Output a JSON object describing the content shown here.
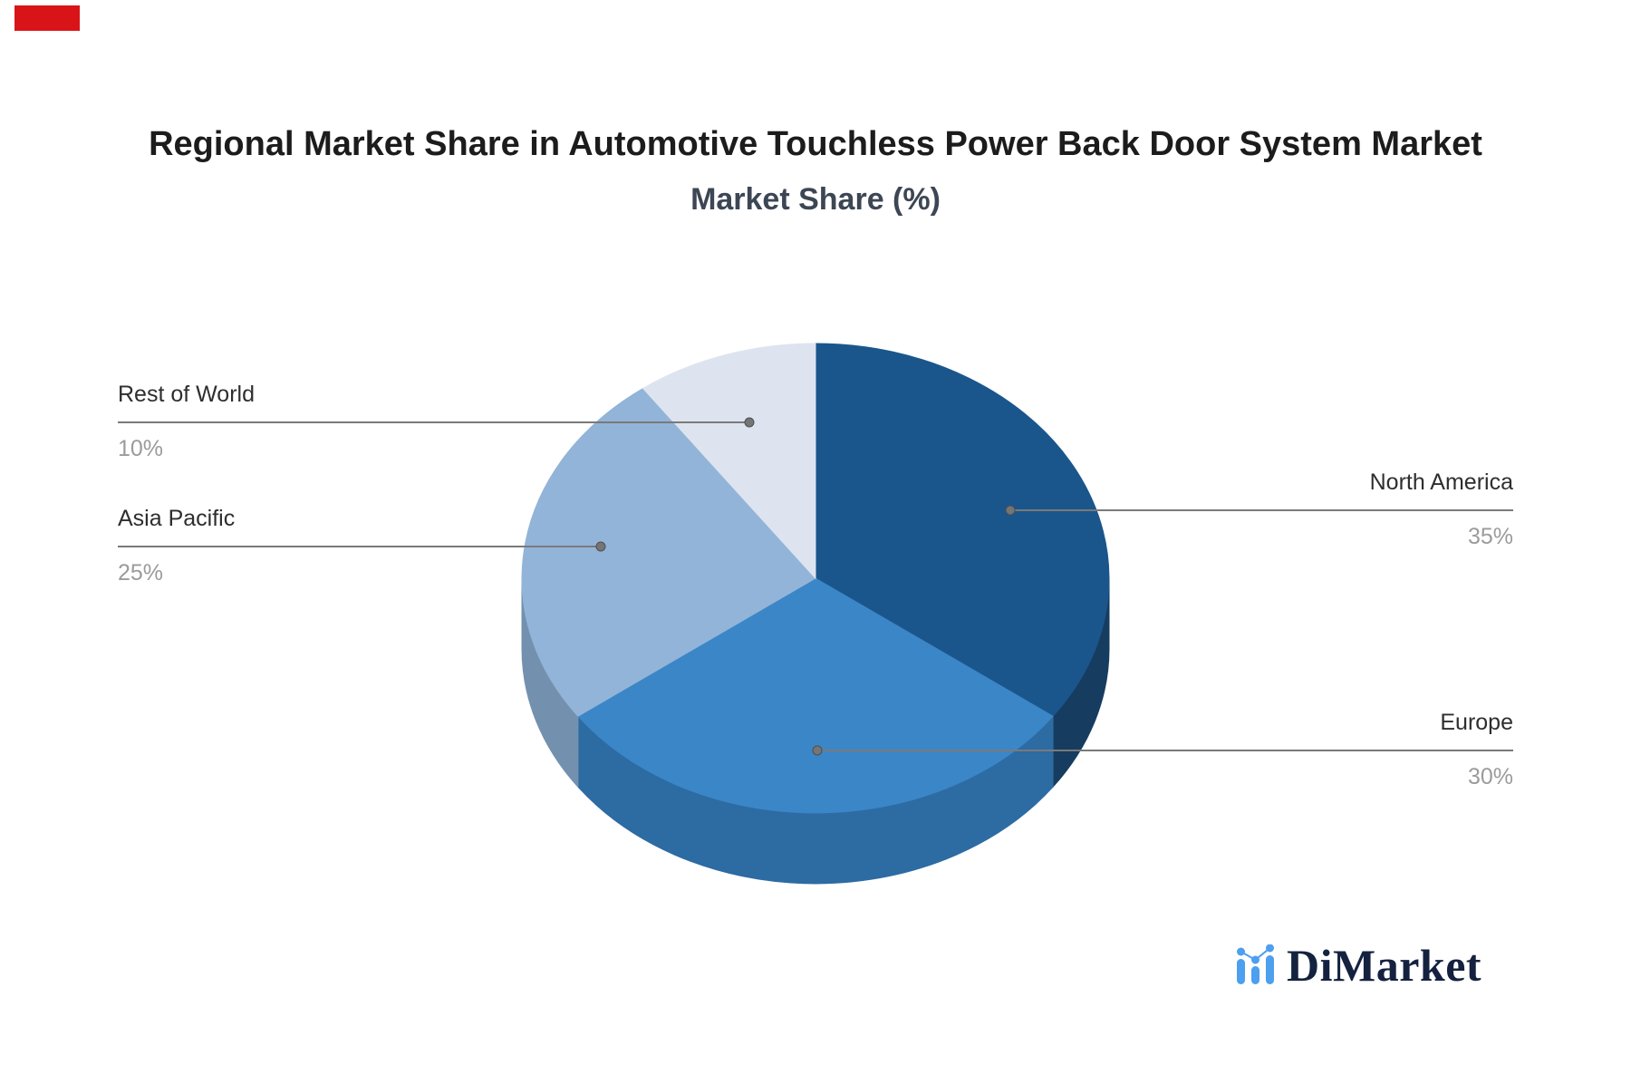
{
  "meta": {
    "corner_mark_color": "#d91418",
    "background_color": "#ffffff",
    "leader_line_color": "#7a7a7a",
    "label_name_color": "#2e2e2e",
    "label_pct_color": "#9b9b9b"
  },
  "header": {
    "title": "Regional Market Share in Automotive Touchless Power Back Door System Market",
    "subtitle": "Market Share (%)"
  },
  "chart_data": {
    "type": "pie",
    "style": "3d-pie",
    "title": "Regional Market Share in Automotive Touchless Power Back Door System Market",
    "subtitle": "Market Share (%)",
    "unit": "%",
    "start_angle_deg": 0,
    "direction": "clockwise",
    "legend_position": "callout-labels",
    "categories": [
      "North America",
      "Europe",
      "Asia Pacific",
      "Rest of World"
    ],
    "values": [
      35,
      30,
      25,
      10
    ],
    "colors": [
      "#1a568c",
      "#3b86c7",
      "#92b4d8",
      "#dde4ef"
    ],
    "side_colors": [
      "#163c60",
      "#2d6ba3",
      "#7391af",
      "#b8c4d6"
    ],
    "callouts": [
      {
        "name": "North America",
        "pct": "35%"
      },
      {
        "name": "Europe",
        "pct": "30%"
      },
      {
        "name": "Asia Pacific",
        "pct": "25%"
      },
      {
        "name": "Rest of World",
        "pct": "10%"
      }
    ]
  },
  "branding": {
    "logo_text": "DiMarket",
    "logo_icon": "bar-chart-logo-icon",
    "logo_text_color": "#142240",
    "logo_icon_color": "#4d9ff0"
  }
}
